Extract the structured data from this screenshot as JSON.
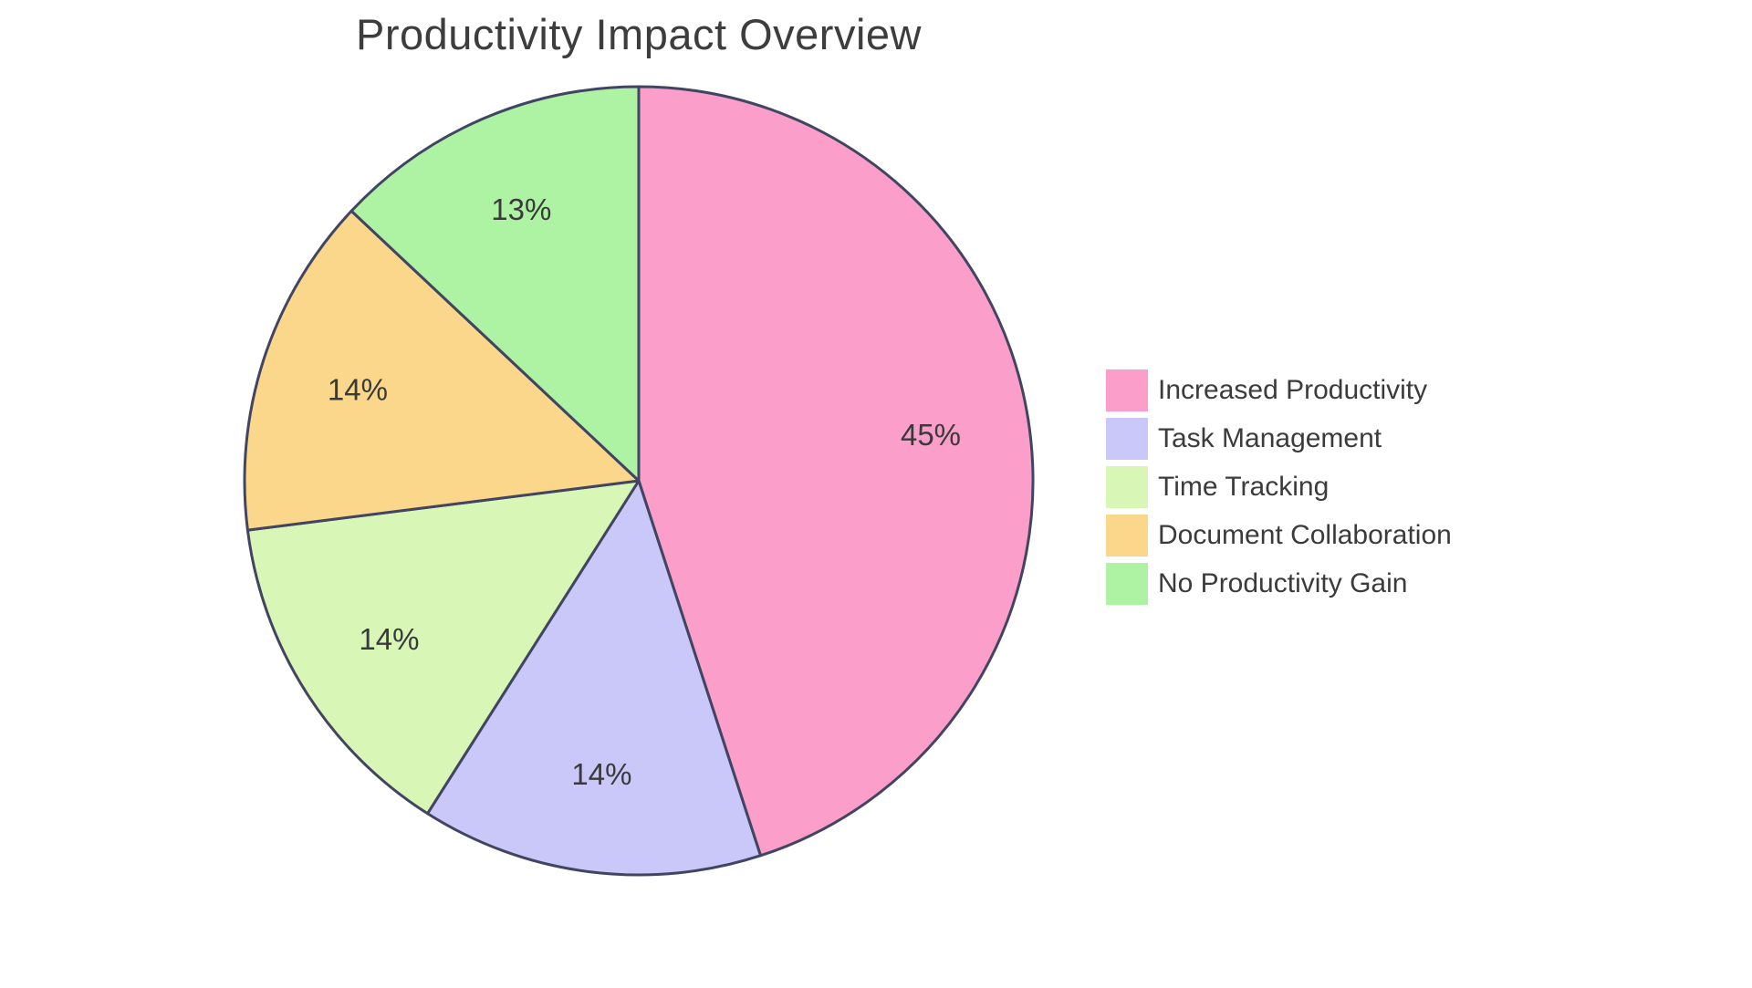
{
  "chart_data": {
    "type": "pie",
    "title": "Productivity Impact Overview",
    "series": [
      {
        "label": "Increased Productivity",
        "value": 45,
        "percent_label": "45%",
        "color": "#FB9EC9"
      },
      {
        "label": "Task Management",
        "value": 14,
        "percent_label": "14%",
        "color": "#C9C8F8"
      },
      {
        "label": "Time Tracking",
        "value": 14,
        "percent_label": "14%",
        "color": "#D8F7B6"
      },
      {
        "label": "Document Collaboration",
        "value": 14,
        "percent_label": "14%",
        "color": "#FAD78A"
      },
      {
        "label": "No Productivity Gain",
        "value": 13,
        "percent_label": "13%",
        "color": "#AEF2A4"
      }
    ],
    "start_angle_deg": 0,
    "direction": "clockwise",
    "legend_position": "right",
    "labels_shown": "percent-inside",
    "slice_border_color": "#414562",
    "label_color": "#3A3A3A",
    "title_color": "#3D3D3D",
    "background": "#FFFFFF"
  }
}
